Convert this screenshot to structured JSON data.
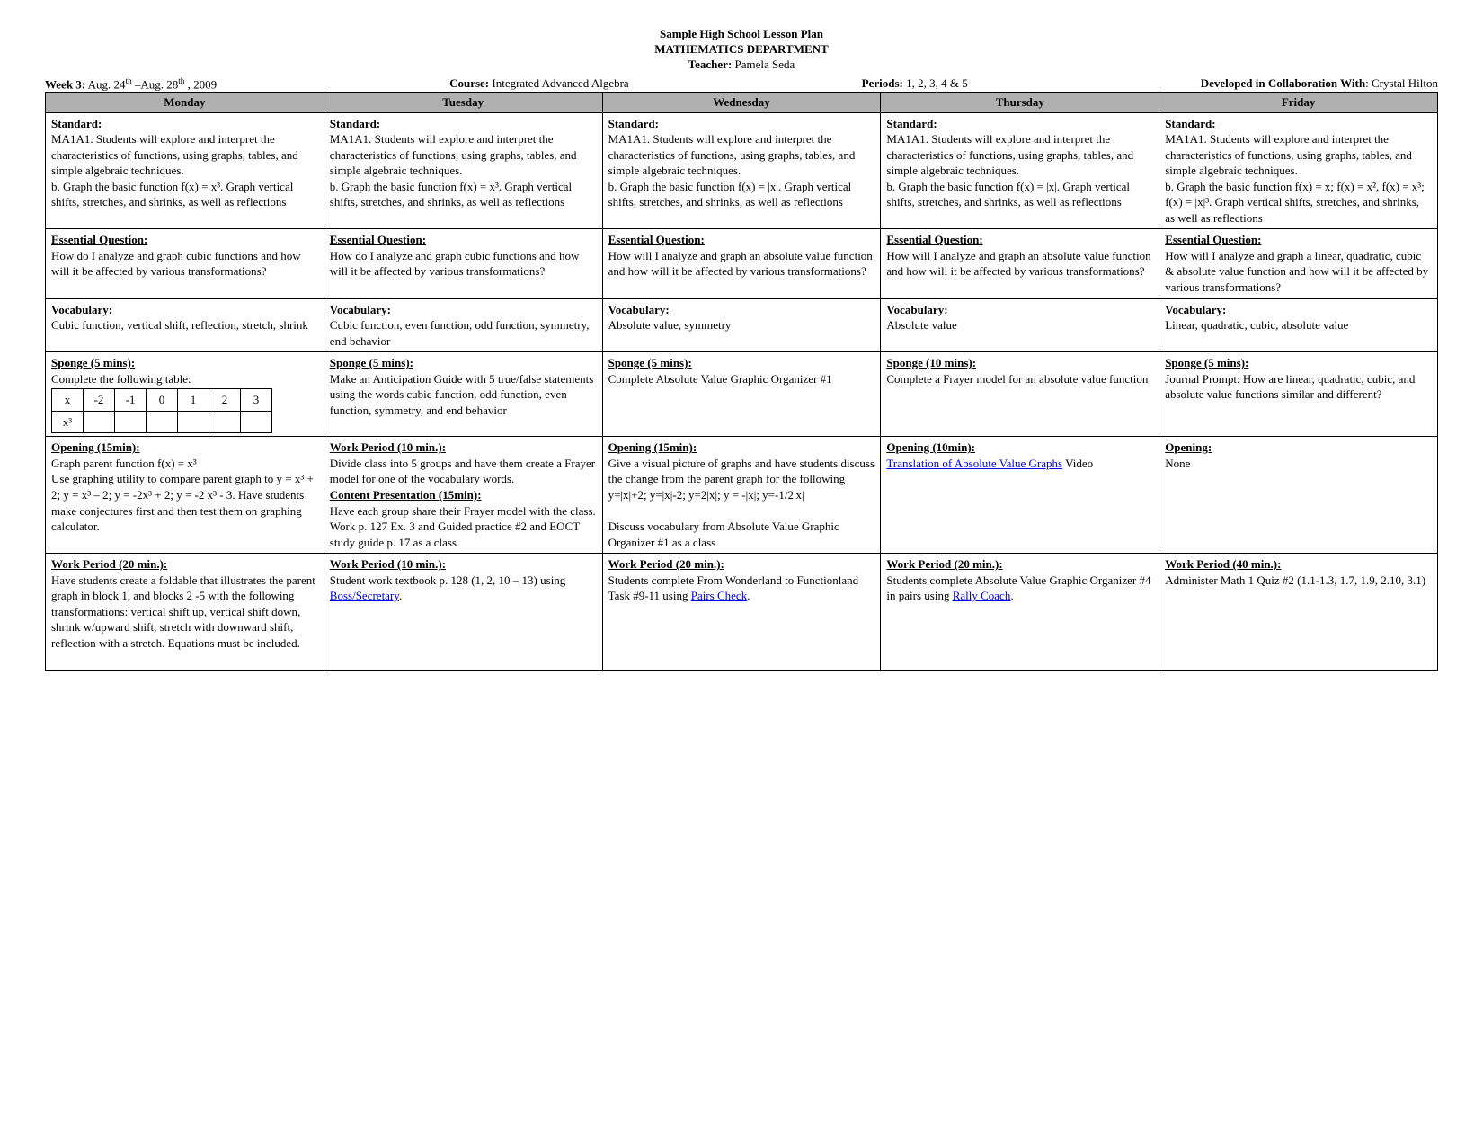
{
  "header": {
    "title": "Sample High School Lesson Plan",
    "dept": "MATHEMATICS DEPARTMENT",
    "teacher_label": "Teacher:",
    "teacher_name": " Pamela Seda"
  },
  "meta": {
    "week_label": "Week 3:",
    "week_value": " Aug. 24",
    "week_sup1": "th",
    "week_dash": " –Aug. 28",
    "week_sup2": "th",
    "week_year": " , 2009",
    "course_label": "Course:",
    "course_value": " Integrated Advanced Algebra",
    "periods_label": "Periods:",
    "periods_value": " 1, 2, 3, 4 & 5",
    "collab_label": "Developed in Collaboration With",
    "collab_value": ": Crystal Hilton"
  },
  "days": [
    "Monday",
    "Tuesday",
    "Wednesday",
    "Thursday",
    "Friday"
  ],
  "labels": {
    "standard": "Standard:",
    "eq": "Essential Question:",
    "vocab": "Vocabulary:",
    "sponge5": "Sponge (5 mins):",
    "sponge10": "Sponge (10 mins):",
    "opening15": "Opening (15min):",
    "opening10": "Opening (10min):",
    "opening": "Opening:",
    "work10": "Work Period (10 min.):",
    "work20": "Work Period (20 min.):",
    "work40": "Work Period (40 min.):",
    "content15": "Content Presentation (15min):"
  },
  "standard": {
    "mon": "MA1A1. Students will explore and interpret the characteristics of functions, using graphs, tables, and simple algebraic techniques.\nb. Graph the basic function f(x) = x³. Graph vertical shifts, stretches, and shrinks, as well as reflections",
    "tue": "MA1A1. Students will explore and interpret the characteristics of functions, using graphs, tables, and simple algebraic techniques.\nb. Graph the basic function f(x) = x³. Graph vertical shifts, stretches, and shrinks, as well as reflections",
    "wed": "MA1A1. Students will explore and interpret the characteristics of functions, using graphs, tables, and simple algebraic techniques.\nb. Graph the basic function f(x) = |x|. Graph vertical shifts, stretches, and shrinks, as well as reflections",
    "thu": "MA1A1. Students will explore and interpret the characteristics of functions, using graphs, tables, and simple algebraic techniques.\nb. Graph the basic function f(x) = |x|. Graph vertical shifts, stretches, and shrinks, as well as reflections",
    "fri": "MA1A1. Students will explore and interpret the characteristics of functions, using graphs, tables, and simple algebraic techniques.\nb. Graph the basic function f(x) = x; f(x) = x², f(x) = x³; f(x) = |x|³. Graph vertical shifts, stretches, and shrinks, as well as reflections"
  },
  "eq": {
    "mon": "How do I analyze and graph cubic functions and how will it be affected by various transformations?",
    "tue": "How do I analyze and graph cubic functions and how will it be affected by various transformations?",
    "wed": "How will I analyze and graph an absolute value function and how will it be affected by various transformations?",
    "thu": "How will I analyze and graph an absolute value function and how will it be affected by various transformations?",
    "fri": "How will I analyze and graph a linear, quadratic, cubic & absolute value function and how will it be affected by various transformations?"
  },
  "vocab": {
    "mon": "Cubic function, vertical shift, reflection, stretch, shrink",
    "tue": "Cubic function, even function, odd function, symmetry, end behavior",
    "wed": "Absolute value, symmetry",
    "thu": "Absolute value",
    "fri": "Linear, quadratic, cubic, absolute value"
  },
  "sponge": {
    "mon_text": "Complete the following table:",
    "mon_table_h": [
      "x",
      "-2",
      "-1",
      "0",
      "1",
      "2",
      "3"
    ],
    "mon_table_r": "x³",
    "tue": "Make an Anticipation Guide with 5 true/false statements using the words cubic function, odd function, even function, symmetry, and end behavior",
    "wed": "Complete Absolute Value Graphic Organizer #1",
    "thu": "Complete a Frayer model for an absolute value function",
    "fri": "Journal Prompt:  How are linear, quadratic, cubic, and absolute value functions similar and different?"
  },
  "opening": {
    "mon": "Graph parent function f(x) = x³\nUse graphing utility to compare parent graph to y = x³ + 2; y = x³ – 2; y = -2x³ + 2; y = -2 x³ - 3.  Have students make conjectures first and then test them on graphing calculator.",
    "tue_work": "Divide class into 5 groups and have them create a Frayer model for one of the vocabulary words.",
    "tue_content": "Have each group share their Frayer model with the class.\nWork p. 127 Ex. 3 and Guided practice #2 and EOCT study guide p. 17 as a class",
    "wed": "Give a visual picture of graphs and have students discuss the change from the parent graph for the following y=|x|+2; y=|x|-2; y=2|x|; y = -|x|; y=-1/2|x|\n\nDiscuss vocabulary from Absolute Value Graphic Organizer #1 as a class",
    "thu_link": "Translation of Absolute Value Graphs",
    "thu_after": " Video",
    "fri": "None"
  },
  "work": {
    "mon": "Have students create a foldable that illustrates the parent graph in block 1, and blocks 2 -5 with the following transformations: vertical shift up, vertical shift down, shrink w/upward shift, stretch with downward shift, reflection with a stretch.  Equations must be included.",
    "tue_pre": "Student work  textbook p. 128 (1, 2, 10 – 13) using ",
    "tue_link": "Boss/Secretary",
    "tue_post": ".",
    "wed_pre": "Students complete From Wonderland to Functionland Task #9-11 using ",
    "wed_link": "Pairs Check",
    "wed_post": ".",
    "thu_pre": "Students complete Absolute Value Graphic Organizer #4 in pairs using ",
    "thu_link": "Rally Coach",
    "thu_post": ".",
    "fri": "Administer Math 1 Quiz #2 (1.1-1.3, 1.7, 1.9, 2.10, 3.1)"
  }
}
